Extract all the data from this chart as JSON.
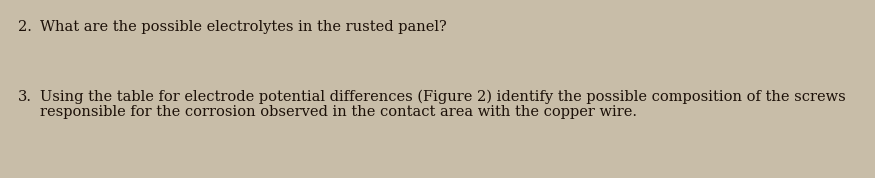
{
  "background_color": "#c8bda8",
  "line1_number": "2.",
  "line1_text": "What are the possible electrolytes in the rusted panel?",
  "line3_number": "3.",
  "line3_text": "Using the table for electrode potential differences (Figure 2) identify the possible composition of the screws",
  "line4_text": "responsible for the corrosion observed in the contact area with the copper wire.",
  "font_size_main": 10.5,
  "text_color": "#1c1008",
  "fig_width": 8.75,
  "fig_height": 1.78,
  "dpi": 100
}
